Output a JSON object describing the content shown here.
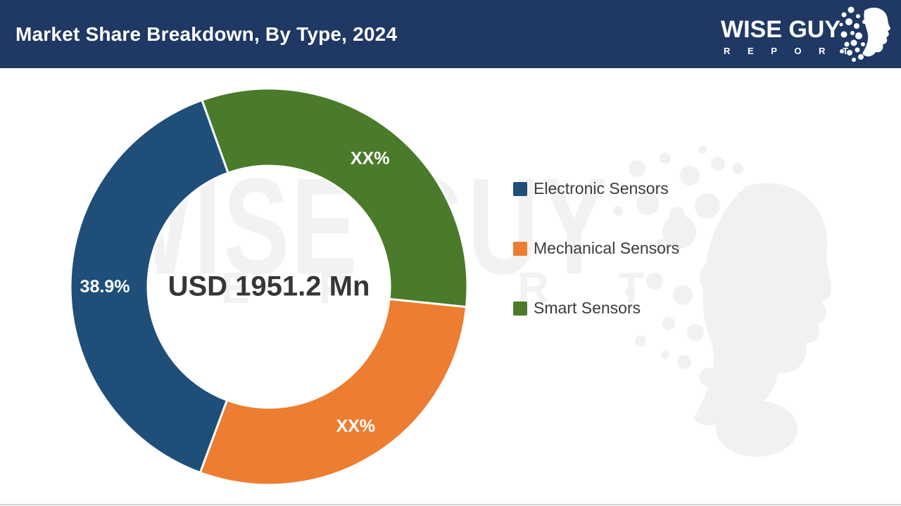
{
  "header": {
    "title": "Market Share Breakdown, By Type, 2024",
    "logo": {
      "line1": "WISE GUY",
      "line2": "R E P O R T S"
    }
  },
  "watermark": {
    "line1": "WISE GUY",
    "line2": "R E P O R T S"
  },
  "chart_data": {
    "type": "donut",
    "title": "Market Share Breakdown, By Type, 2024",
    "center_label": "USD 1951.2 Mn",
    "start_angle_deg": -19.7,
    "units": "percent of market share",
    "segments": [
      {
        "label": "Smart Sensors",
        "value_pct": 32.1,
        "display_label": "XX%",
        "color": "#4A7B2B"
      },
      {
        "label": "Mechanical Sensors",
        "value_pct": 29.0,
        "display_label": "XX%",
        "color": "#ED7D31"
      },
      {
        "label": "Electronic Sensors",
        "value_pct": 38.9,
        "display_label": "38.9%",
        "color": "#1F4E79"
      }
    ],
    "legend": [
      {
        "label": "Electronic Sensors",
        "segment_index": 2
      },
      {
        "label": "Mechanical Sensors",
        "segment_index": 1
      },
      {
        "label": "Smart Sensors",
        "segment_index": 0
      }
    ],
    "legend_position": "right"
  },
  "colors": {
    "header_bg": "#1F3864",
    "text_dark": "#363636",
    "watermark": "#F2F2F2",
    "bottom_rule": "#D4D4D4"
  }
}
